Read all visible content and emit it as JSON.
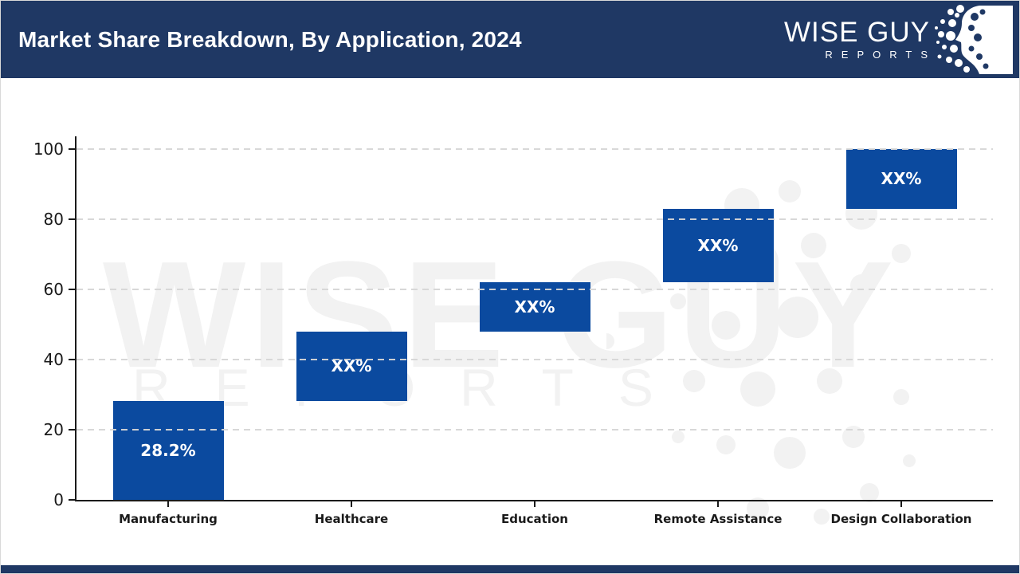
{
  "header": {
    "title": "Market Share Breakdown, By Application, 2024",
    "logo": {
      "line1": "WISE GUY",
      "line2": "REPORTS"
    }
  },
  "watermark": {
    "line1": "WISE GUY",
    "line2": "REPORTS"
  },
  "colors": {
    "header_bg": "#1f3864",
    "footer_bg": "#1f3864",
    "bar": "#0b4a9f",
    "bar_label": "#ffffff",
    "axis": "#1a1a1a",
    "grid": "#d9d9d9",
    "tick_text": "#1a1a1a",
    "watermark": "#f2f2f2"
  },
  "chart_data": {
    "type": "bar",
    "subtype": "waterfall-floating-segments",
    "title": "Market Share Breakdown, By Application, 2024",
    "categories": [
      "Manufacturing",
      "Healthcare",
      "Education",
      "Remote Assistance",
      "Design Collaboration"
    ],
    "segments": [
      {
        "category": "Manufacturing",
        "start": 0,
        "end": 28.2,
        "label": "28.2%"
      },
      {
        "category": "Healthcare",
        "start": 28.2,
        "end": 48,
        "label": "XX%"
      },
      {
        "category": "Education",
        "start": 48,
        "end": 62,
        "label": "XX%"
      },
      {
        "category": "Remote Assistance",
        "start": 62,
        "end": 83,
        "label": "XX%"
      },
      {
        "category": "Design Collaboration",
        "start": 83,
        "end": 100,
        "label": "XX%"
      }
    ],
    "xlabel": "",
    "ylabel": "",
    "ylim": [
      0,
      100
    ],
    "yticks": [
      0,
      20,
      40,
      60,
      80,
      100
    ],
    "grid": "horizontal-dashed-over-bars",
    "legend": "none"
  }
}
